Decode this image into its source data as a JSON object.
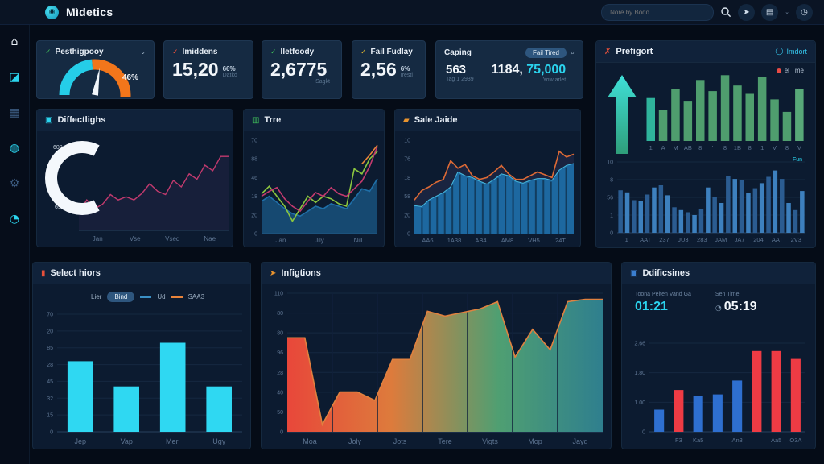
{
  "colors": {
    "accent": "#2bd4ee",
    "check_green": "#3fbf5a",
    "check_red": "#e8503a",
    "check_yellow": "#e0b62e",
    "link": "#35c3e8",
    "legend_red": "#e84b45",
    "series_blue": "#3a8fc4",
    "series_orange": "#e8833a",
    "icon_cyan": "#2bd4ee",
    "icon_green": "#3fbf5a",
    "icon_orange": "#e8932e",
    "icon_red": "#e8503a",
    "icon_blue": "#3b7fd0"
  },
  "topbar": {
    "title": "Mìdetics",
    "logo_glyph": "◉",
    "search_placeholder": "Nore by Bodd...",
    "chevron": "⌄",
    "buttons": [
      {
        "name": "cursor",
        "glyph": "➤"
      },
      {
        "name": "apps",
        "glyph": "▤"
      },
      {
        "name": "time",
        "glyph": "◷"
      }
    ]
  },
  "sidebar": {
    "items": [
      {
        "name": "home",
        "glyph": "⌂",
        "color": "#e8eef5"
      },
      {
        "name": "users",
        "glyph": "◪",
        "color": "#2bd4ee"
      },
      {
        "name": "dashboard",
        "glyph": "▦",
        "color": "#3d5d83"
      },
      {
        "name": "globe",
        "glyph": "◍",
        "color": "#2bd4ee"
      },
      {
        "name": "settings",
        "glyph": "⚙",
        "color": "#3d5d83"
      },
      {
        "name": "reports",
        "glyph": "◔",
        "color": "#2bd4ee"
      }
    ]
  },
  "metrics": {
    "m1": {
      "check": "✓",
      "title": "Pesthigpooy",
      "chevron": "⌄",
      "gauge_label": "46%"
    },
    "m2": {
      "check": "✓",
      "title": "Imiddens",
      "value": "15,20",
      "badge": "66%",
      "sub": "Datkd"
    },
    "m3": {
      "check": "✓",
      "title": "Iletfoody",
      "value": "2,6775",
      "sub": "Sagkt"
    },
    "m4": {
      "check": "✓",
      "title": "Fail Fudlay",
      "value": "2,56",
      "badge": "6%",
      "sub": "Iresti"
    },
    "m5": {
      "title": "Caping",
      "pill": "Fail Tired",
      "pill_icon": "⌕",
      "v1": "563",
      "v1_sub": "Tag 1 2939",
      "v2a": "1184,",
      "v2b": "75,000",
      "v2_sub": "Yow arlet"
    }
  },
  "cards": {
    "prefigort": {
      "title": "Prefigort",
      "icon_glyph": "✗",
      "action_icon": "◯",
      "action": "Imdort",
      "legend": "el Tme",
      "legend2": "Fun"
    },
    "diffectlighs": {
      "title": "Diffectlighs",
      "icon_glyph": "▣",
      "ytick_top": "600",
      "ytick_bottom": "69"
    },
    "trre": {
      "title": "Trre",
      "icon_glyph": "▥"
    },
    "salejaide": {
      "title": "Sale Jaide",
      "icon_glyph": "▰"
    },
    "selecthiors": {
      "title": "Select hiors",
      "icon_glyph": "▮",
      "legend_label": "Lier",
      "legend_pill": "Bind",
      "series_a": "Ud",
      "series_b": "SAA3"
    },
    "infigtions": {
      "title": "Infigtions",
      "icon_glyph": "➤"
    },
    "ddificsines": {
      "title": "Ddificsines",
      "icon_glyph": "▣",
      "stat1_label": "Toona Pelten Vand Ga",
      "stat1_value": "01:21",
      "stat2_label": "Sen Time",
      "stat2_icon": "◔",
      "stat2_value": "05:19"
    }
  },
  "chart_data": [
    {
      "id": "gauge-performance",
      "type": "gauge",
      "value_pct": 46,
      "label": "46%",
      "th": 13,
      "segments": [
        {
          "a0": 180,
          "a1": 95,
          "color": "#25cde8"
        },
        {
          "a0": 95,
          "a1": -12,
          "color": "#f2761b"
        }
      ],
      "needle_angle": 80
    },
    {
      "id": "prefigort-bars",
      "type": "bar",
      "ymax": 100,
      "axis": false,
      "bw": 0.68,
      "padl": 4,
      "padr": 4,
      "padt": 4,
      "values": [
        62,
        45,
        75,
        58,
        88,
        72,
        95,
        80,
        68,
        92,
        60,
        42,
        75
      ],
      "colors": [
        "#2fb39b",
        "#4f9e6e",
        "#4f9e6e",
        "#4f9e6e",
        "#4f9e6e",
        "#4f9e6e",
        "#4f9e6e",
        "#4f9e6e",
        "#4f9e6e",
        "#4f9e6e",
        "#4f9e6e",
        "#4f9e6e",
        "#57a878"
      ],
      "categories": [
        "1",
        "A",
        "M",
        "AB",
        "8",
        "'",
        "8",
        "1B",
        "8",
        "1",
        "V",
        "8",
        "V"
      ]
    },
    {
      "id": "prefigort-blue",
      "type": "bar",
      "ymax": 10,
      "grid": true,
      "bw": 0.66,
      "padl": 20,
      "yticks": [
        "10",
        "8",
        "56",
        "1",
        "0"
      ],
      "values": [
        6,
        5.7,
        4.6,
        4.5,
        5.4,
        6.4,
        6.7,
        5.3,
        3.6,
        3.2,
        2.9,
        2.5,
        3.4,
        6.4,
        5.1,
        4.2,
        8,
        7.6,
        7.4,
        5.6,
        6.3,
        7,
        7.9,
        8.8,
        7.6,
        4.2,
        3.2,
        5.9
      ],
      "colors": [
        "#2b5c91",
        "#3d80be"
      ],
      "categories": [
        "1",
        "AAT",
        "237",
        "JU3",
        "283",
        "JAM",
        "JA7",
        "204",
        "AAT",
        "2V3"
      ]
    },
    {
      "id": "diffectlighs-area",
      "type": "area",
      "ymax": 80,
      "stroke": "#c23a6e",
      "fill": "#171f3a",
      "sw": 1.4,
      "padl": 4,
      "padr": 2,
      "padb": 16,
      "catsize": 8,
      "y": [
        16,
        28,
        20,
        24,
        33,
        28,
        31,
        28,
        34,
        43,
        36,
        33,
        46,
        40,
        52,
        47,
        60,
        55,
        68,
        68
      ],
      "categories": [
        "Jan",
        "Vse",
        "Vsed",
        "Nae"
      ]
    },
    {
      "id": "diffectlighs-arc",
      "type": "arc",
      "a0": 62,
      "a1": 298,
      "color": "#f4f8fc",
      "th": 15
    },
    {
      "id": "trre-lines",
      "type": "lines",
      "ymax": 75,
      "padl": 20,
      "catsize": 8,
      "yticks": [
        "70",
        "88",
        "46",
        "18",
        "20",
        "0"
      ],
      "categories": [
        "Jan",
        "Jily",
        "Nill"
      ],
      "series": [
        {
          "name": "volume",
          "color": "#1f6fa8",
          "fill": true,
          "y": [
            26,
            30,
            25,
            20,
            16,
            14,
            18,
            22,
            20,
            24,
            22,
            20,
            28,
            36,
            34,
            44
          ]
        },
        {
          "name": "green",
          "color": "#8bc63f",
          "y": [
            32,
            38,
            30,
            22,
            10,
            20,
            30,
            25,
            30,
            28,
            24,
            22,
            52,
            48,
            60,
            66
          ]
        },
        {
          "name": "pink",
          "color": "#c23a6e",
          "y": [
            30,
            34,
            37,
            28,
            22,
            18,
            26,
            33,
            30,
            37,
            32,
            30,
            36,
            42,
            54,
            70
          ]
        },
        {
          "name": "orange",
          "color": "#e8833a",
          "y": [
            null,
            null,
            null,
            null,
            null,
            null,
            null,
            null,
            null,
            null,
            null,
            null,
            null,
            56,
            63,
            71
          ]
        }
      ]
    },
    {
      "id": "salejaide-area",
      "type": "dualarea",
      "ymax": 100,
      "padl": 22,
      "stripes": 21,
      "yticks": [
        "10",
        "76",
        "18",
        "58",
        "20",
        "0"
      ],
      "categories": [
        "AA6",
        "1A38",
        "AB4",
        "AM8",
        "VH5",
        "24T"
      ],
      "top": {
        "stroke": "#dd6a35",
        "fill": "#1a2440",
        "y": [
          36,
          46,
          50,
          55,
          58,
          78,
          70,
          74,
          62,
          58,
          60,
          66,
          73,
          64,
          58,
          58,
          62,
          66,
          63,
          60,
          88,
          82,
          85
        ]
      },
      "bottom": {
        "stroke": "#46b9dd",
        "fill": "#1e6da5",
        "y": [
          30,
          29,
          36,
          40,
          44,
          50,
          66,
          62,
          60,
          56,
          53,
          58,
          64,
          62,
          56,
          54,
          57,
          59,
          59,
          57,
          68,
          73,
          75
        ]
      }
    },
    {
      "id": "select-bars",
      "type": "bar",
      "ymax": 70,
      "grid": true,
      "bw": 0.55,
      "color": "#2fd8f2",
      "padl": 26,
      "padb": 18,
      "catsize": 9,
      "yticks": [
        "70",
        "20",
        "85",
        "28",
        "45",
        "32",
        "15",
        "0"
      ],
      "values": [
        42,
        27,
        53,
        27
      ],
      "categories": [
        "Jep",
        "Vap",
        "Meri",
        "Ugy"
      ]
    },
    {
      "id": "infigtions-area",
      "type": "area",
      "ymax": 115,
      "grid": true,
      "vgrid": 7,
      "sw": 1.6,
      "padl": 28,
      "padb": 18,
      "catsize": 9,
      "stroke": "#e0813f",
      "gradient": [
        "#e8473a",
        "#dd7b3c",
        "#4f9f72",
        "#2f7f8e"
      ],
      "yticks": [
        "110",
        "80",
        "80",
        "96",
        "28",
        "40",
        "50",
        "0"
      ],
      "y": [
        78,
        78,
        6,
        33,
        33,
        26,
        60,
        60,
        100,
        96,
        99,
        102,
        108,
        62,
        85,
        68,
        108,
        110,
        110
      ],
      "categories": [
        "Moa",
        "Joly",
        "Jots",
        "Tere",
        "Vigts",
        "Mop",
        "Jayd"
      ]
    },
    {
      "id": "ddificsines-bars",
      "type": "bar",
      "ymax": 2.8,
      "grid": true,
      "bw": 0.5,
      "padl": 28,
      "padb": 16,
      "yticks": [
        "2.66",
        "1.80",
        "1.00",
        "0"
      ],
      "values": [
        0.7,
        1.32,
        1.12,
        1.18,
        1.62,
        2.55,
        2.55,
        2.3
      ],
      "colors": [
        "#2e6fd0",
        "#ee3b44",
        "#2e6fd0",
        "#2e6fd0",
        "#2e6fd0",
        "#ee3b44",
        "#ee3b44",
        "#ee3b44"
      ],
      "categories": [
        "",
        "F3",
        "Ka5",
        "",
        "An3",
        "",
        "Aa5",
        "O3A"
      ]
    }
  ]
}
